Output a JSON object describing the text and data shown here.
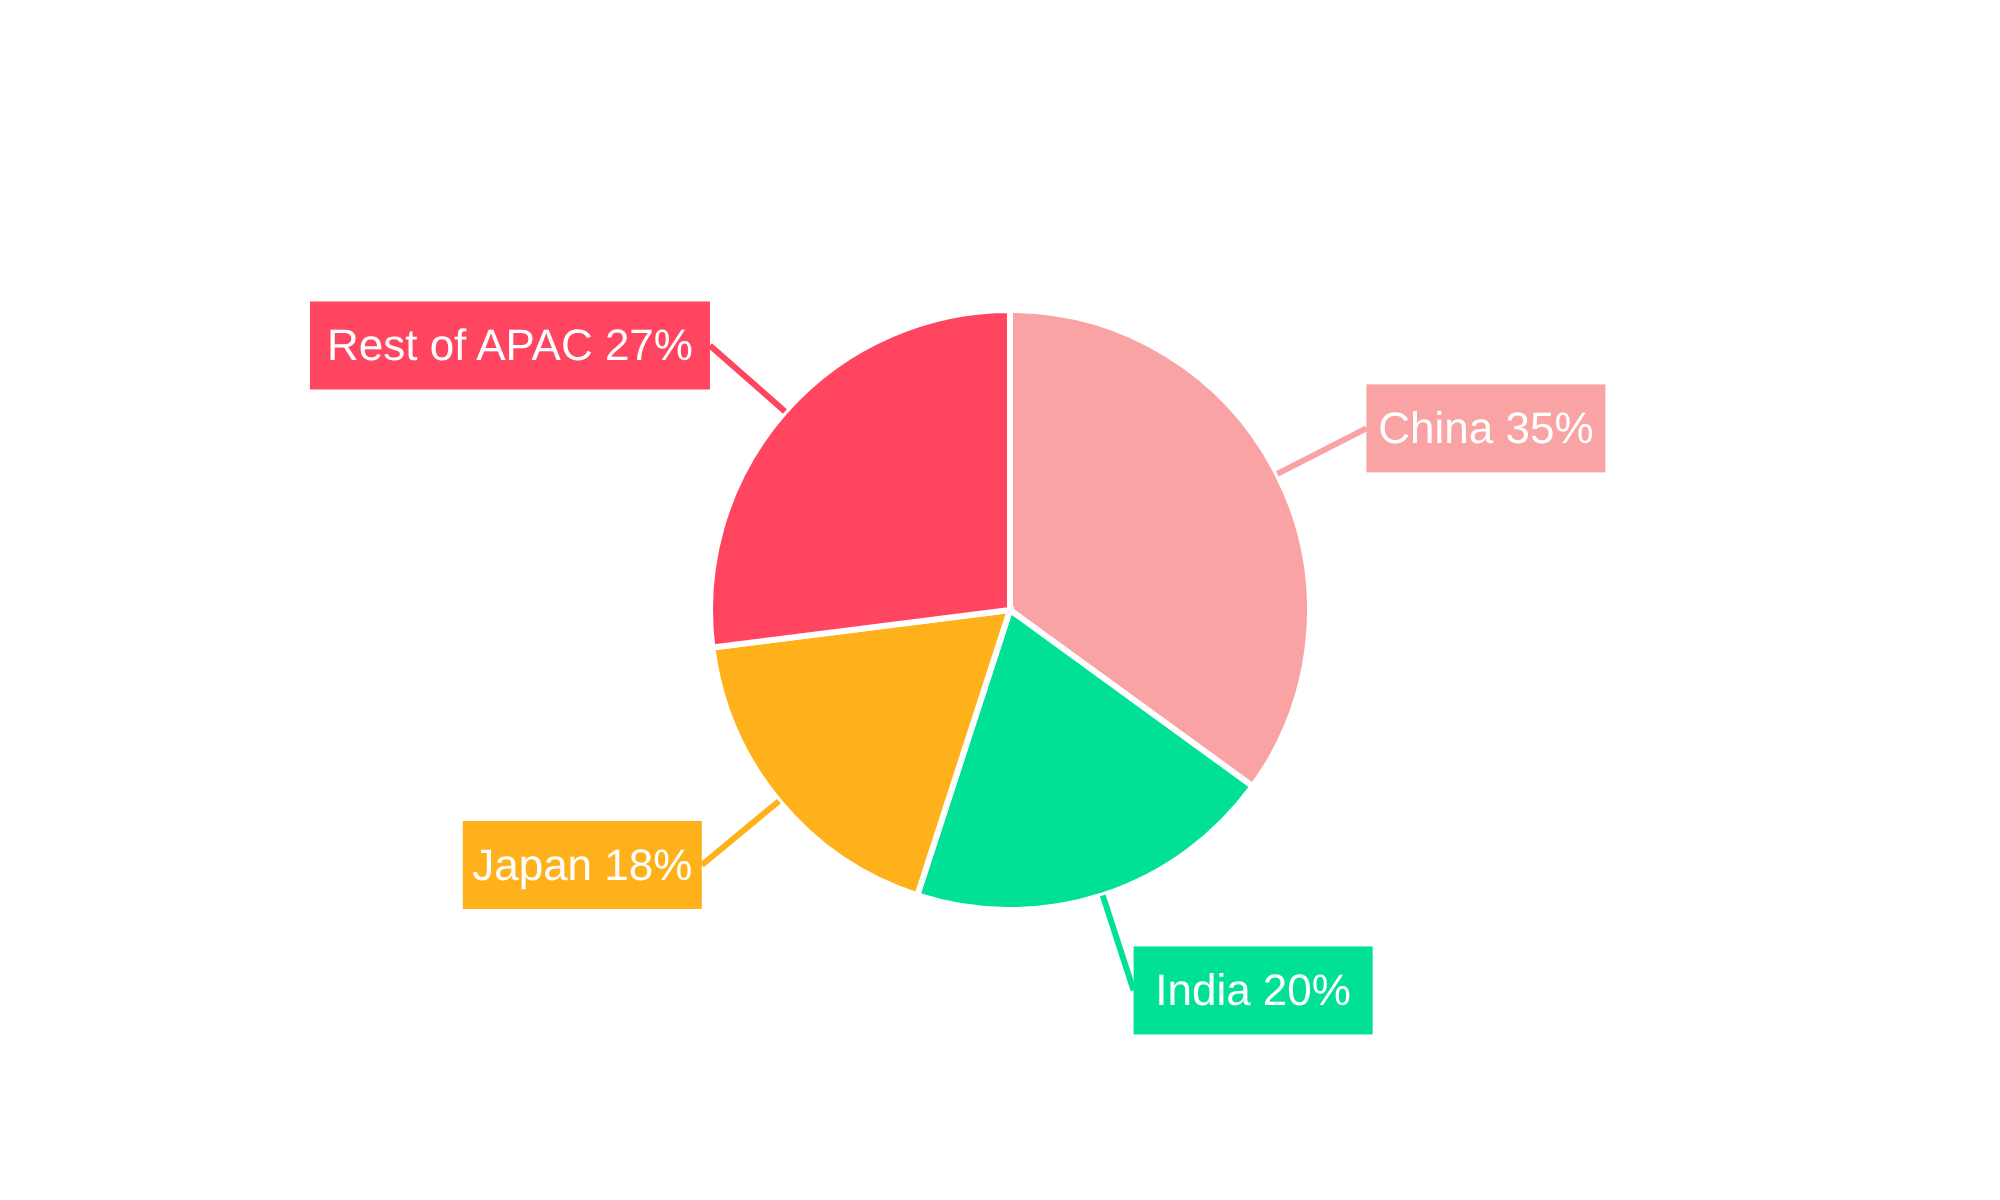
{
  "chart_data": {
    "type": "pie",
    "categories": [
      "China",
      "India",
      "Japan",
      "Rest of APAC"
    ],
    "values": [
      35,
      20,
      18,
      27
    ],
    "colors": [
      "#f9a3a4",
      "#00e096",
      "#ffb11b",
      "#ff4560"
    ],
    "value_labels": [
      "35%",
      "20%",
      "18%",
      "27%"
    ]
  }
}
